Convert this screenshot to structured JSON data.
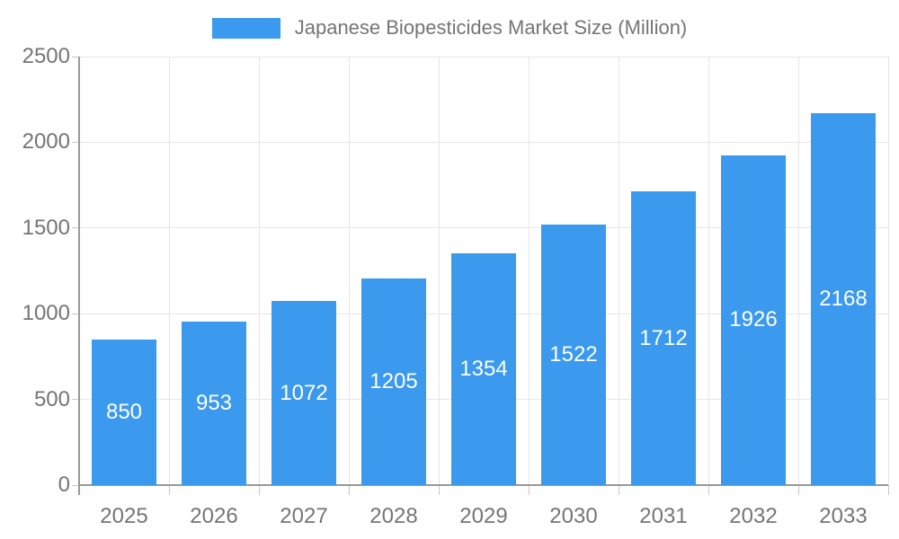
{
  "legend": {
    "label": "Japanese Biopesticides Market Size (Million)"
  },
  "chart_data": {
    "type": "bar",
    "title": "Japanese Biopesticides Market Size (Million)",
    "categories": [
      "2025",
      "2026",
      "2027",
      "2028",
      "2029",
      "2030",
      "2031",
      "2032",
      "2033"
    ],
    "values": [
      850,
      953,
      1072,
      1205,
      1354,
      1522,
      1712,
      1926,
      2168
    ],
    "series": [
      {
        "name": "Japanese Biopesticides Market Size (Million)",
        "values": [
          850,
          953,
          1072,
          1205,
          1354,
          1522,
          1712,
          1926,
          2168
        ]
      }
    ],
    "xlabel": "",
    "ylabel": "",
    "y_ticks": [
      "0",
      "500",
      "1000",
      "1500",
      "2000",
      "2500"
    ],
    "ylim": [
      0,
      2500
    ],
    "grid": true,
    "legend_position": "top",
    "data_labels": "inside-center",
    "colors": {
      "bar": "#3B99EE",
      "bar_label_text": "#ffffff",
      "axis_text": "#757575",
      "legend_text": "#757575",
      "gridline": "#E6E6E6",
      "axis_line": "#999999",
      "tick": "#C8C8C8",
      "background": "#ffffff"
    }
  }
}
